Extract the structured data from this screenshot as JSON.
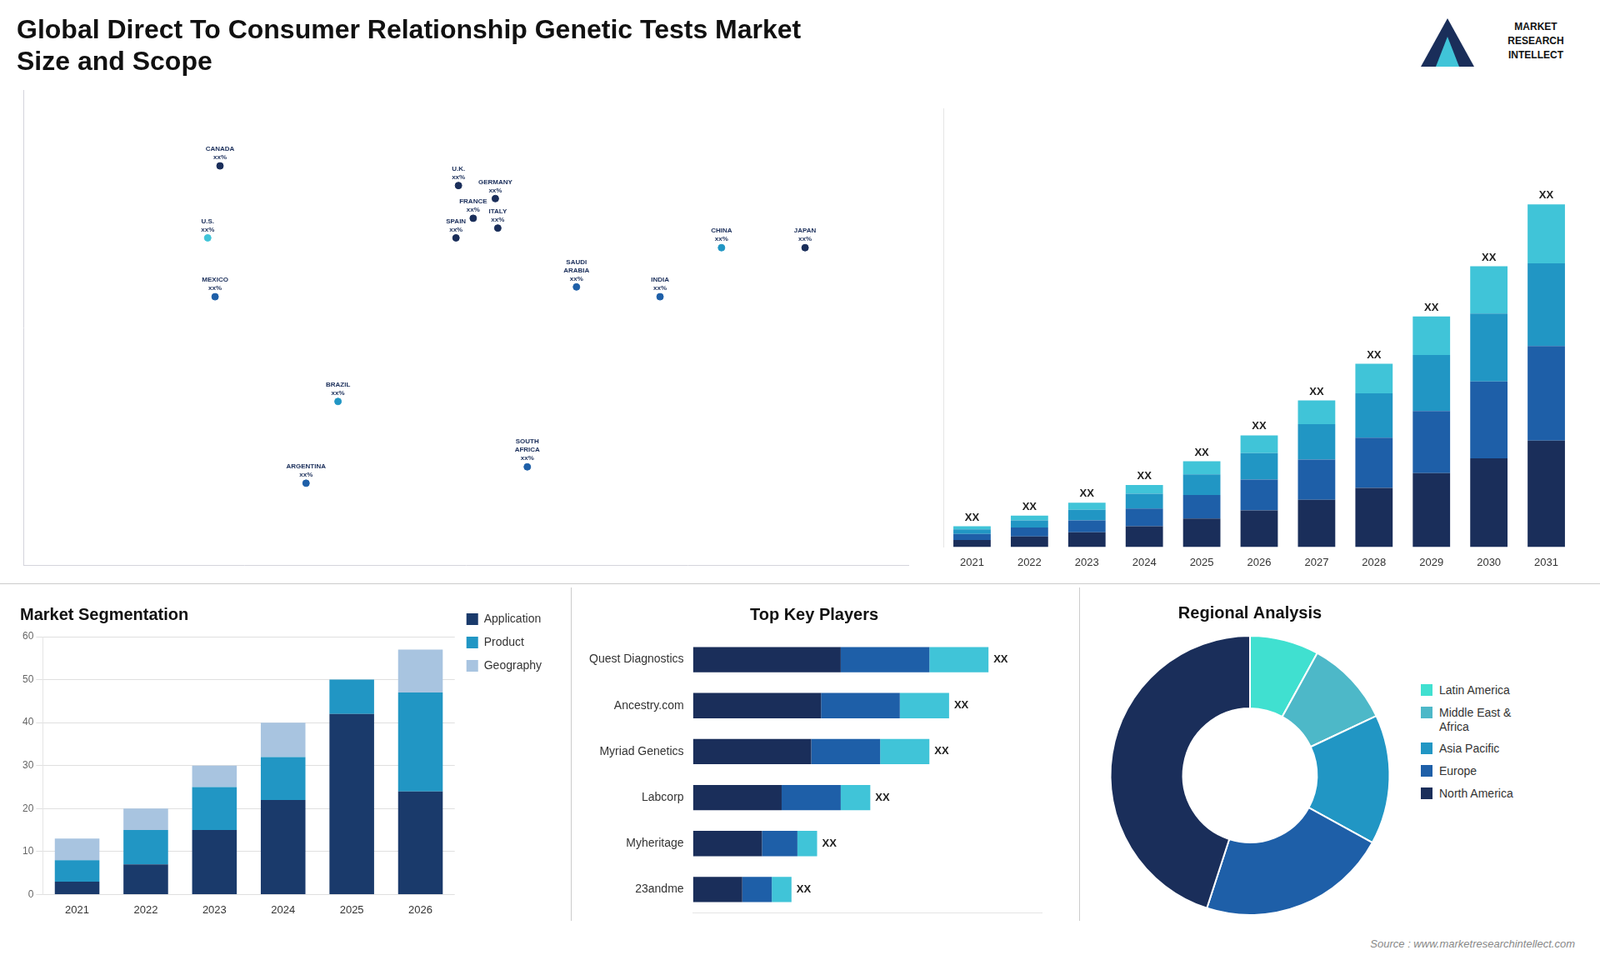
{
  "chart_data": [
    {
      "type": "scatter",
      "title": "Global Direct To Consumer Relationship Genetic Tests Market\nSize and Scope",
      "x": [
        -100,
        -105,
        -102,
        -52,
        -65,
        -3,
        3,
        -4,
        12,
        13,
        45,
        25,
        104,
        79,
        138
      ],
      "values": [
        62,
        40,
        22,
        -10,
        -35,
        56,
        46,
        40,
        52,
        43,
        25,
        -30,
        37,
        22,
        37
      ],
      "value_labels": [
        "CANADA\nxx%",
        "U.S.\nxx%",
        "MEXICO\nxx%",
        "BRAZIL\nxx%",
        "ARGENTINA\nxx%",
        "U.K.\nxx%",
        "FRANCE\nxx%",
        "SPAIN\nxx%",
        "GERMANY\nxx%",
        "ITALY\nxx%",
        "SAUDI\nARABIA\nxx%",
        "SOUTH\nAFRICA\nxx%",
        "CHINA\nxx%",
        "INDIA\nxx%",
        "JAPAN\nxx%"
      ],
      "colors": [
        "#1a2e5a",
        "#40c4d8",
        "#1e5fa8",
        "#2196c4",
        "#1e5fa8",
        "#1a2e5a",
        "#1a2e5a",
        "#1a2e5a",
        "#1a2e5a",
        "#1a2e5a",
        "#1e5fa8",
        "#1e5fa8",
        "#2196c4",
        "#1e5fa8",
        "#1a2e5a"
      ],
      "xlim": [
        -180,
        180
      ],
      "ylim": [
        -60,
        85
      ],
      "tick_labels": false,
      "grid": false
    },
    {
      "type": "bar",
      "stacked": true,
      "categories": [
        "2021",
        "2022",
        "2023",
        "2024",
        "2025",
        "2026",
        "2027",
        "2028",
        "2029",
        "2030",
        "2031"
      ],
      "series": [
        {
          "color": "#1a2e5a",
          "values": [
            1.2,
            1.8,
            2.5,
            3.5,
            4.8,
            6.2,
            8.0,
            10.0,
            12.5,
            15.0,
            18.0
          ]
        },
        {
          "color": "#1e5fa8",
          "values": [
            1.0,
            1.5,
            2.0,
            3.0,
            4.0,
            5.2,
            6.8,
            8.5,
            10.5,
            13.0,
            16.0
          ]
        },
        {
          "color": "#2196c4",
          "values": [
            0.8,
            1.2,
            1.8,
            2.5,
            3.5,
            4.5,
            6.0,
            7.5,
            9.5,
            11.5,
            14.0
          ]
        },
        {
          "color": "#40c4d8",
          "values": [
            0.5,
            0.8,
            1.2,
            1.5,
            2.2,
            3.0,
            4.0,
            5.0,
            6.5,
            8.0,
            10.0
          ]
        }
      ],
      "value_labels": [
        "XX",
        "XX",
        "XX",
        "XX",
        "XX",
        "XX",
        "XX",
        "XX",
        "XX",
        "XX",
        "XX"
      ],
      "ylim": [
        0,
        74.24
      ],
      "tick_labels": "x",
      "grid": false,
      "annotations": [
        "MARKET\nRESEARCH\nINTELLECT"
      ]
    },
    {
      "type": "bar",
      "stacked": true,
      "title": "Market Segmentation",
      "categories": [
        "2021",
        "2022",
        "2023",
        "2024",
        "2025",
        "2026"
      ],
      "series": [
        {
          "name": "Application",
          "color": "#1a3a6b",
          "values": [
            3,
            7,
            15,
            22,
            42,
            24
          ]
        },
        {
          "name": "Product",
          "color": "#2196c4",
          "values": [
            5,
            8,
            10,
            10,
            8,
            23
          ]
        },
        {
          "name": "Geography",
          "color": "#a8c4e0",
          "values": [
            5,
            5,
            5,
            8,
            0,
            10
          ]
        }
      ],
      "ylim": [
        0,
        60
      ],
      "yticks": [
        0,
        10,
        20,
        30,
        40,
        50,
        60
      ],
      "grid": true,
      "legend": "right"
    },
    {
      "type": "bar",
      "stacked": true,
      "orientation": "horizontal",
      "title": "Top Key Players",
      "categories": [
        "Quest Diagnostics",
        "Ancestry.com",
        "Myriad Genetics",
        "Labcorp",
        "Myheritage",
        "23andme"
      ],
      "series": [
        {
          "color": "#1a2e5a",
          "values": [
            7.5,
            6.5,
            6.0,
            4.5,
            3.5,
            2.5
          ]
        },
        {
          "color": "#1e5fa8",
          "values": [
            4.5,
            4.0,
            3.5,
            3.0,
            1.8,
            1.5
          ]
        },
        {
          "color": "#40c4d8",
          "values": [
            3.0,
            2.5,
            2.5,
            1.5,
            1.0,
            1.0
          ]
        }
      ],
      "value_labels": [
        "XX",
        "XX",
        "XX",
        "XX",
        "XX",
        "XX"
      ],
      "xlim": [
        0,
        17.7
      ],
      "tick_labels": "y",
      "grid": false
    },
    {
      "type": "doughnut",
      "title": "Regional Analysis",
      "categories": [
        "Latin America",
        "Middle East &\nAfrica",
        "Asia Pacific",
        "Europe",
        "North America"
      ],
      "values": [
        8,
        10,
        15,
        22,
        45
      ],
      "colors": [
        "#40e0d0",
        "#4db8c8",
        "#2196c4",
        "#1e5fa8",
        "#1a2e5a"
      ],
      "legend": "right",
      "annotations": [
        "Source : www.marketresearchintellect.com"
      ]
    }
  ]
}
